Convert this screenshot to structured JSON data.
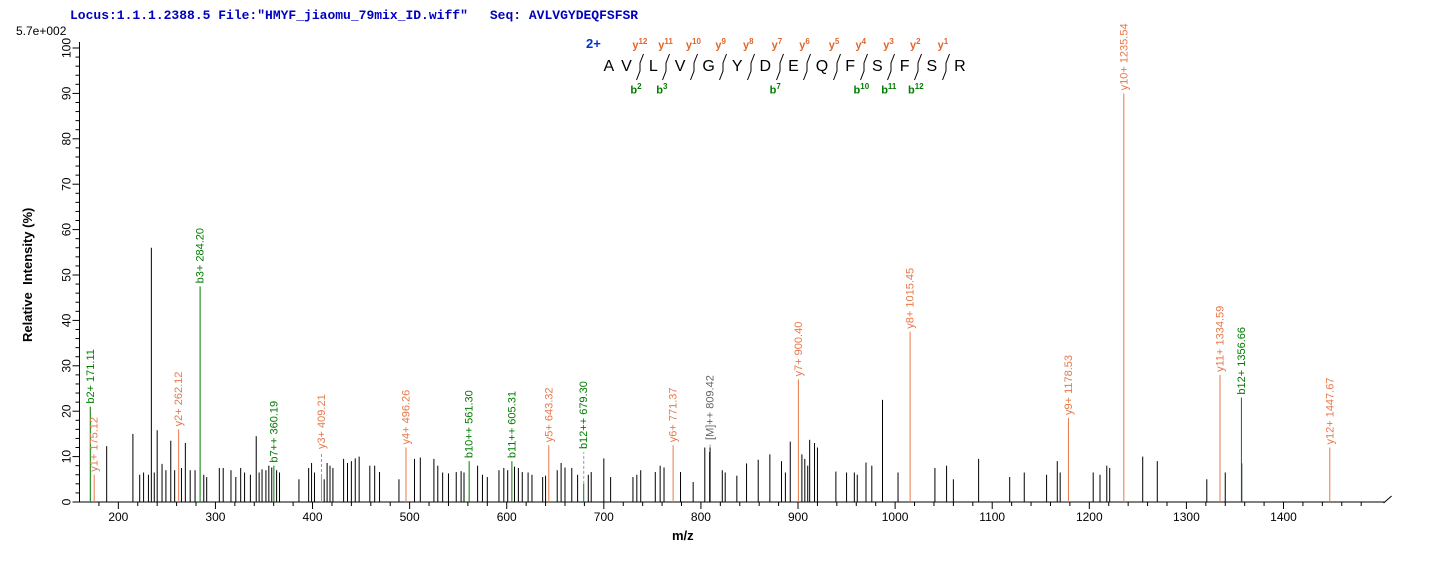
{
  "header": {
    "locus_text": "Locus:1.1.1.2388.5 File:\"HMYF_jiaomu_79mix_ID.wiff\"",
    "seq_text": "Seq: AVLVGYDEQFSFSR"
  },
  "intensity_scale_label": "5.7e+002",
  "sequence_annotation": {
    "precursor_charge": "2+",
    "residues": [
      "A",
      "V",
      "L",
      "V",
      "G",
      "Y",
      "D",
      "E",
      "Q",
      "F",
      "S",
      "F",
      "S",
      "R"
    ],
    "cleavages": [
      {
        "after": 2,
        "y": "y12",
        "b": "b2"
      },
      {
        "after": 3,
        "y": "y11",
        "b": "b3"
      },
      {
        "after": 4,
        "y": "y10"
      },
      {
        "after": 5,
        "y": "y9"
      },
      {
        "after": 6,
        "y": "y8"
      },
      {
        "after": 7,
        "y": "y7",
        "b": "b7"
      },
      {
        "after": 8,
        "y": "y6"
      },
      {
        "after": 9,
        "y": "y5"
      },
      {
        "after": 10,
        "y": "y4",
        "b": "b10"
      },
      {
        "after": 11,
        "y": "y3",
        "b": "b11"
      },
      {
        "after": 12,
        "y": "y2",
        "b": "b12"
      },
      {
        "after": 13,
        "y": "y1"
      }
    ]
  },
  "chart_data": {
    "type": "stick",
    "subtype": "msms-fragmentation-spectrum",
    "xlabel": "m/z",
    "ylabel": "Relative  Intensity (%)",
    "xlim": [
      160,
      1500
    ],
    "ylim": [
      0,
      100
    ],
    "x_major_tick": 100,
    "x_minor_tick": 20,
    "y_major_tick": 10,
    "y_minor_tick": 2,
    "x_tick_labels": [
      200,
      300,
      400,
      500,
      600,
      700,
      800,
      900,
      1000,
      1100,
      1200,
      1300,
      1400
    ],
    "y_tick_labels": [
      0,
      10,
      20,
      30,
      40,
      50,
      60,
      70,
      80,
      90,
      100
    ],
    "colors": {
      "b_ion": "#007c00",
      "y_ion": "#e8784a",
      "precursor_label": "#666666",
      "leader_dash": "#999999",
      "peak": "#000000",
      "axis": "#000000"
    },
    "labeled_peaks": [
      {
        "label": "b2+ 171.11",
        "ion": "b",
        "mz": 171.11,
        "top_pct": 21
      },
      {
        "label": "y1+ 175.12",
        "ion": "y",
        "mz": 175.12,
        "top_pct": 6
      },
      {
        "label": "y2+ 262.12",
        "ion": "y",
        "mz": 262.12,
        "top_pct": 16
      },
      {
        "label": "b3+ 284.20",
        "ion": "b",
        "mz": 284.2,
        "top_pct": 47.5
      },
      {
        "label": "b7++ 360.19",
        "ion": "b",
        "mz": 360.19,
        "top_pct": 8
      },
      {
        "label": "y3+ 409.21",
        "ion": "y",
        "mz": 409.21,
        "top_pct": 11,
        "peak_pct": 5.5,
        "dashed": true
      },
      {
        "label": "y4+ 496.26",
        "ion": "y",
        "mz": 496.26,
        "top_pct": 12
      },
      {
        "label": "b10++ 561.30",
        "ion": "b",
        "mz": 561.3,
        "top_pct": 9
      },
      {
        "label": "b11++ 605.31",
        "ion": "b",
        "mz": 605.31,
        "top_pct": 9
      },
      {
        "label": "y5+ 643.32",
        "ion": "y",
        "mz": 643.32,
        "top_pct": 12.5
      },
      {
        "label": "b12++ 679.30",
        "ion": "b",
        "mz": 679.3,
        "top_pct": 11,
        "peak_pct": 4,
        "dashed": true
      },
      {
        "label": "y6+ 771.37",
        "ion": "y",
        "mz": 771.37,
        "top_pct": 12.5
      },
      {
        "label": "[M]++ 809.42",
        "ion": "M",
        "mz": 809.42,
        "top_pct": 13,
        "peak_pct": 12,
        "dashed": true
      },
      {
        "label": "y7+ 900.40",
        "ion": "y",
        "mz": 900.4,
        "top_pct": 27
      },
      {
        "label": "y8+ 1015.45",
        "ion": "y",
        "mz": 1015.45,
        "top_pct": 37.5
      },
      {
        "label": "y9+ 1178.53",
        "ion": "y",
        "mz": 1178.53,
        "top_pct": 18.5
      },
      {
        "label": "y10+ 1235.54",
        "ion": "y",
        "mz": 1235.54,
        "top_pct": 90
      },
      {
        "label": "y11+ 1334.59",
        "ion": "y",
        "mz": 1334.59,
        "top_pct": 28
      },
      {
        "label": "b12+ 1356.66",
        "ion": "b",
        "mz": 1356.66,
        "top_pct": 23
      },
      {
        "label": "y12+ 1447.67",
        "ion": "y",
        "mz": 1447.67,
        "top_pct": 12
      }
    ],
    "unlabeled_peaks": [
      [
        188,
        12.3
      ],
      [
        215,
        15
      ],
      [
        222,
        6
      ],
      [
        226,
        6.5
      ],
      [
        231,
        6
      ],
      [
        234,
        56
      ],
      [
        237,
        6.5
      ],
      [
        240,
        15.8
      ],
      [
        245,
        8.4
      ],
      [
        249,
        7
      ],
      [
        254,
        13.5
      ],
      [
        258,
        7
      ],
      [
        265,
        7.5
      ],
      [
        269,
        13
      ],
      [
        274,
        7
      ],
      [
        279,
        7
      ],
      [
        288,
        6
      ],
      [
        291,
        5.5
      ],
      [
        304,
        7.5
      ],
      [
        308,
        7.5
      ],
      [
        316,
        7
      ],
      [
        321,
        5.5
      ],
      [
        326,
        7.5
      ],
      [
        330,
        6.5
      ],
      [
        336,
        6
      ],
      [
        342,
        14.5
      ],
      [
        345,
        6.5
      ],
      [
        348,
        7.2
      ],
      [
        352,
        7
      ],
      [
        355,
        8
      ],
      [
        358,
        7.6
      ],
      [
        363,
        7
      ],
      [
        366,
        6.5
      ],
      [
        386,
        5
      ],
      [
        396,
        7.5
      ],
      [
        399,
        8.6
      ],
      [
        402,
        6.5
      ],
      [
        412,
        5
      ],
      [
        415,
        8.6
      ],
      [
        418,
        8
      ],
      [
        421,
        7.5
      ],
      [
        432,
        9.5
      ],
      [
        436,
        8.6
      ],
      [
        440,
        9
      ],
      [
        444,
        9.6
      ],
      [
        448,
        10
      ],
      [
        459,
        8
      ],
      [
        464,
        8
      ],
      [
        469,
        6.6
      ],
      [
        489,
        5
      ],
      [
        505,
        9.5
      ],
      [
        511,
        9.8
      ],
      [
        525,
        9.5
      ],
      [
        529,
        8
      ],
      [
        534,
        6.5
      ],
      [
        540,
        6.3
      ],
      [
        548,
        6.6
      ],
      [
        553,
        6.8
      ],
      [
        556,
        6.5
      ],
      [
        570,
        8
      ],
      [
        575,
        6
      ],
      [
        580,
        5.5
      ],
      [
        592,
        7
      ],
      [
        597,
        7.5
      ],
      [
        601,
        7
      ],
      [
        608,
        7.8
      ],
      [
        612,
        7.5
      ],
      [
        616,
        6.6
      ],
      [
        622,
        6.5
      ],
      [
        626,
        6
      ],
      [
        637,
        5.5
      ],
      [
        640,
        5.8
      ],
      [
        652,
        7
      ],
      [
        656,
        8.6
      ],
      [
        660,
        7.6
      ],
      [
        667,
        7.5
      ],
      [
        673,
        6
      ],
      [
        684,
        6
      ],
      [
        687,
        6.6
      ],
      [
        700,
        9.6
      ],
      [
        707,
        5.5
      ],
      [
        730,
        5.5
      ],
      [
        734,
        6
      ],
      [
        738,
        7
      ],
      [
        753,
        6.6
      ],
      [
        758,
        8
      ],
      [
        762,
        7.6
      ],
      [
        779,
        6.6
      ],
      [
        792,
        4.4
      ],
      [
        804,
        12
      ],
      [
        809,
        11
      ],
      [
        822,
        7
      ],
      [
        825,
        6.5
      ],
      [
        837,
        5.8
      ],
      [
        847,
        8.5
      ],
      [
        859,
        9.3
      ],
      [
        871,
        10.5
      ],
      [
        883,
        9
      ],
      [
        887,
        6.5
      ],
      [
        892,
        13.3
      ],
      [
        904,
        10.5
      ],
      [
        907,
        9.5
      ],
      [
        910,
        8
      ],
      [
        912,
        13.7
      ],
      [
        917,
        13
      ],
      [
        920,
        12
      ],
      [
        939,
        6.7
      ],
      [
        950,
        6.5
      ],
      [
        958,
        6.5
      ],
      [
        961,
        6
      ],
      [
        970,
        8.7
      ],
      [
        976,
        8
      ],
      [
        987,
        22.5
      ],
      [
        1003,
        6.5
      ],
      [
        1041,
        7.5
      ],
      [
        1053,
        8
      ],
      [
        1060,
        5
      ],
      [
        1086,
        9.5
      ],
      [
        1118,
        5.5
      ],
      [
        1133,
        6.5
      ],
      [
        1156,
        6
      ],
      [
        1167,
        9
      ],
      [
        1170,
        6.5
      ],
      [
        1204,
        6.5
      ],
      [
        1211,
        6
      ],
      [
        1218,
        8
      ],
      [
        1221,
        7.5
      ],
      [
        1255,
        10
      ],
      [
        1270,
        9
      ],
      [
        1321,
        5
      ],
      [
        1340,
        6.5
      ],
      [
        1357,
        8.5
      ]
    ]
  }
}
